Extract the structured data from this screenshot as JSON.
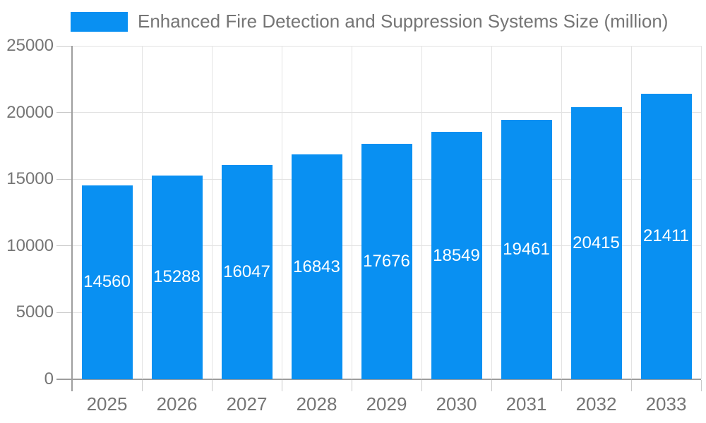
{
  "chart_data": {
    "type": "bar",
    "title": "Enhanced Fire Detection and Suppression Systems Size (million)",
    "categories": [
      "2025",
      "2026",
      "2027",
      "2028",
      "2029",
      "2030",
      "2031",
      "2032",
      "2033"
    ],
    "values": [
      14560,
      15288,
      16047,
      16843,
      17676,
      18549,
      19461,
      20415,
      21411
    ],
    "ylim": [
      0,
      25000
    ],
    "yticks": [
      0,
      5000,
      10000,
      15000,
      20000,
      25000
    ],
    "xlabel": "",
    "ylabel": "",
    "legend_position": "top-left",
    "grid": true,
    "bar_labels_inside": true,
    "colors": {
      "bar": "#0990f2",
      "bar_label": "#ffffff",
      "grid": "#e3e3e3",
      "axis": "#9e9e9e",
      "tick": "#c9c9c9",
      "text": "#757575",
      "background": "#ffffff"
    }
  }
}
